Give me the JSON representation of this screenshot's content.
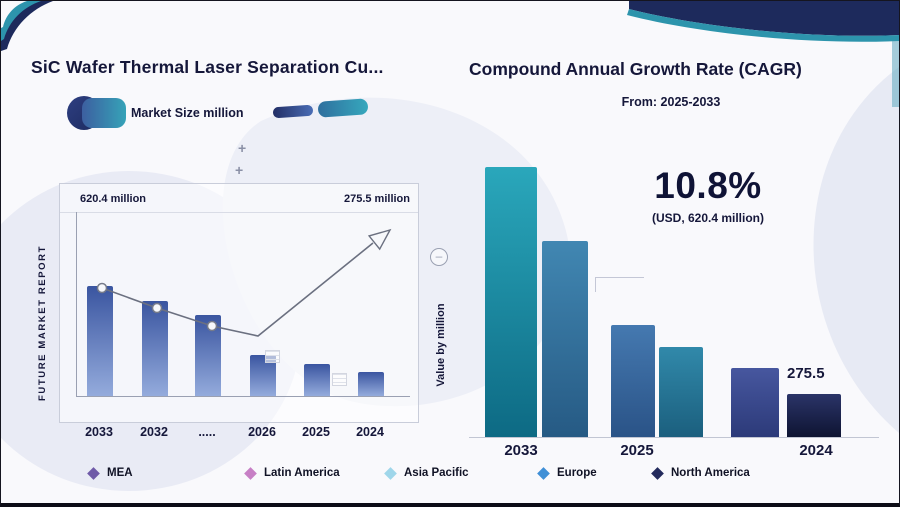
{
  "header": {
    "left_title": "SiC Wafer Thermal Laser Separation Cu...",
    "left_legend_label": "Market Size million",
    "right_title": "Compound Annual Growth Rate (CAGR)",
    "right_subtitle": "From: 2025-2033"
  },
  "left_chart": {
    "max_label": "620.4 million",
    "min_label": "275.5 million",
    "watermark": "FUTURE MARKET REPORT"
  },
  "right_chart": {
    "cagr": "10.8%",
    "cagr_detail": "(USD, 620.4 million)",
    "value_annotation": "275.5",
    "ylabel": "Value by million"
  },
  "decor": {
    "plus": "+",
    "minus": "–"
  },
  "region_legend": [
    {
      "label": "MEA",
      "color": "#6f5aa8"
    },
    {
      "label": "Latin America",
      "color": "#c77fc5"
    },
    {
      "label": "Asia Pacific",
      "color": "#9fd6ea"
    },
    {
      "label": "Europe",
      "color": "#3f8fd6"
    },
    {
      "label": "North America",
      "color": "#232a5c"
    }
  ],
  "colors": {
    "navy": "#1d2a5c",
    "teal": "#2d94ac",
    "title_text": "#15173a",
    "left_bar_gradient": [
      "#3a55a0",
      "#94abdc"
    ],
    "right_bar_gradients": [
      [
        "#2aa7bb",
        "#0d6a84"
      ],
      [
        "#4187b2",
        "#265a84"
      ],
      [
        "#4579b0",
        "#2a5387"
      ],
      [
        "#3189aa",
        "#1b5f7e"
      ],
      [
        "#47579f",
        "#2c3a79"
      ],
      [
        "#2b3468",
        "#0e1432"
      ]
    ]
  },
  "chart_data": [
    {
      "type": "bar",
      "id": "market-size-trend",
      "title": "SiC Wafer Thermal Laser Separation Cu...",
      "legend": "Market Size million",
      "categories": [
        "2033",
        "2032",
        ".....",
        "2026",
        "2025",
        "2024"
      ],
      "values": [
        620.4,
        560,
        505,
        345,
        310,
        275.5
      ],
      "annotations": [
        "620.4 million",
        "275.5 million"
      ],
      "overlay_line": {
        "marker_categories": [
          "2033",
          "2032",
          "....."
        ],
        "description": "trend line declines across 2033-2026 then arrow rises sharply toward 620.4 million"
      },
      "xlabel": "",
      "ylabel": "Value by million",
      "ylim": [
        180,
        650
      ],
      "grid": false,
      "legend_position": "top-left"
    },
    {
      "type": "bar",
      "id": "cagr-grouped",
      "title": "Compound Annual Growth Rate (CAGR)",
      "subtitle": "From: 2025-2033",
      "categories": [
        "2033",
        "2025",
        "2024"
      ],
      "series": [
        {
          "name": "series-a",
          "values": [
            620.4,
            258,
            158
          ]
        },
        {
          "name": "series-b",
          "values": [
            450,
            207,
            98
          ]
        }
      ],
      "cagr": "10.8%",
      "cagr_detail": "(USD, 620.4 million)",
      "annotation": {
        "category": "2024",
        "text": "275.5"
      },
      "xlabel": "",
      "ylabel": "",
      "ylim": [
        0,
        650
      ],
      "grid": false
    }
  ]
}
